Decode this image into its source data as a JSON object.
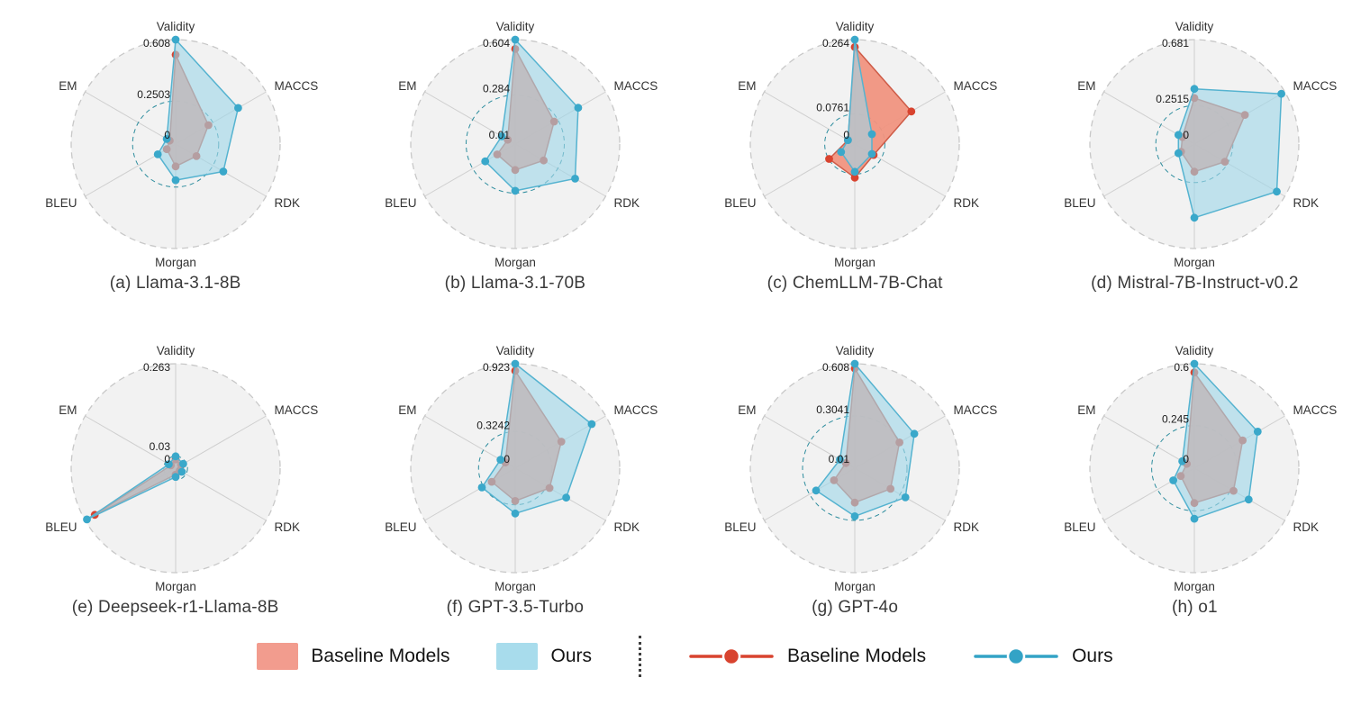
{
  "colors": {
    "baseline_fill": "#F0937F",
    "baseline_stroke": "#CE5B47",
    "baseline_dot": "#D8432F",
    "ours_fill": "#9FD7E8",
    "ours_stroke": "#55B3D0",
    "ours_dot": "#3AA8CA",
    "grid_fill": "#F2F2F2",
    "grid_stroke": "#C8C8C8",
    "spoke": "#CFCFCF",
    "mid_circle": "#2E8D9E",
    "axis_label": "#333333",
    "tick_label": "#1A1A1A",
    "caption": "#3A3A3A"
  },
  "chart_data": [
    {
      "type": "radar",
      "title": "(a) Llama-3.1-8B",
      "axes": [
        "Validity",
        "MACCS",
        "RDK",
        "Morgan",
        "BLEU",
        "EM"
      ],
      "ticks": [
        {
          "label": "0.608",
          "value": 0.608
        },
        {
          "label": "0.2503",
          "value": 0.2503
        },
        {
          "label": "0",
          "value": 0
        }
      ],
      "series": [
        {
          "name": "Baseline Models",
          "values": [
            0.52,
            0.22,
            0.14,
            0.13,
            0.06,
            0.04
          ]
        },
        {
          "name": "Ours",
          "values": [
            0.608,
            0.42,
            0.32,
            0.21,
            0.12,
            0.06
          ]
        }
      ]
    },
    {
      "type": "radar",
      "title": "(b) Llama-3.1-70B",
      "axes": [
        "Validity",
        "MACCS",
        "RDK",
        "Morgan",
        "BLEU",
        "EM"
      ],
      "ticks": [
        {
          "label": "0.604",
          "value": 0.604
        },
        {
          "label": "0.284",
          "value": 0.284
        },
        {
          "label": "0.01",
          "value": 0.01
        }
      ],
      "series": [
        {
          "name": "Baseline Models",
          "values": [
            0.55,
            0.26,
            0.19,
            0.15,
            0.12,
            0.05
          ]
        },
        {
          "name": "Ours",
          "values": [
            0.604,
            0.42,
            0.4,
            0.27,
            0.2,
            0.09
          ]
        }
      ]
    },
    {
      "type": "radar",
      "title": "(c) ChemLLM-7B-Chat",
      "axes": [
        "Validity",
        "MACCS",
        "RDK",
        "Morgan",
        "BLEU",
        "EM"
      ],
      "ticks": [
        {
          "label": "0.264",
          "value": 0.264
        },
        {
          "label": "0.0761",
          "value": 0.0761
        },
        {
          "label": "0",
          "value": 0
        }
      ],
      "series": [
        {
          "name": "Baseline Models",
          "values": [
            0.245,
            0.165,
            0.055,
            0.085,
            0.075,
            0.02
          ]
        },
        {
          "name": "Ours",
          "values": [
            0.264,
            0.05,
            0.05,
            0.07,
            0.04,
            0.02
          ]
        }
      ]
    },
    {
      "type": "radar",
      "title": "(d) Mistral-7B-Instruct-v0.2",
      "axes": [
        "Validity",
        "MACCS",
        "RDK",
        "Morgan",
        "BLEU",
        "EM"
      ],
      "ticks": [
        {
          "label": "0.681",
          "value": 0.681
        },
        {
          "label": "0.2515",
          "value": 0.2515
        },
        {
          "label": "0",
          "value": 0
        }
      ],
      "series": [
        {
          "name": "Baseline Models",
          "values": [
            0.3,
            0.38,
            0.23,
            0.18,
            0.1,
            0.09
          ]
        },
        {
          "name": "Ours",
          "values": [
            0.36,
            0.655,
            0.62,
            0.48,
            0.12,
            0.12
          ]
        }
      ]
    },
    {
      "type": "radar",
      "title": "(e) Deepseek-r1-Llama-8B",
      "axes": [
        "Validity",
        "MACCS",
        "RDK",
        "Morgan",
        "BLEU",
        "EM"
      ],
      "ticks": [
        {
          "label": "0.263",
          "value": 0.263
        },
        {
          "label": "0.03",
          "value": 0.03
        },
        {
          "label": "0",
          "value": 0
        }
      ],
      "series": [
        {
          "name": "Baseline Models",
          "values": [
            0.022,
            0.016,
            0.012,
            0.016,
            0.235,
            0.014
          ]
        },
        {
          "name": "Ours",
          "values": [
            0.03,
            0.022,
            0.018,
            0.022,
            0.258,
            0.02
          ]
        }
      ]
    },
    {
      "type": "radar",
      "title": "(f) GPT-3.5-Turbo",
      "axes": [
        "Validity",
        "MACCS",
        "RDK",
        "Morgan",
        "BLEU",
        "EM"
      ],
      "ticks": [
        {
          "label": "0.923",
          "value": 0.923
        },
        {
          "label": "0.3242",
          "value": 0.3242
        },
        {
          "label": "0",
          "value": 0
        }
      ],
      "series": [
        {
          "name": "Baseline Models",
          "values": [
            0.86,
            0.47,
            0.35,
            0.29,
            0.24,
            0.1
          ]
        },
        {
          "name": "Ours",
          "values": [
            0.923,
            0.78,
            0.52,
            0.4,
            0.34,
            0.15
          ]
        }
      ]
    },
    {
      "type": "radar",
      "title": "(g) GPT-4o",
      "axes": [
        "Validity",
        "MACCS",
        "RDK",
        "Morgan",
        "BLEU",
        "EM"
      ],
      "ticks": [
        {
          "label": "0.608",
          "value": 0.608
        },
        {
          "label": "0.3041",
          "value": 0.3041
        },
        {
          "label": "0.01",
          "value": 0.01
        }
      ],
      "series": [
        {
          "name": "Baseline Models",
          "values": [
            0.58,
            0.3,
            0.24,
            0.2,
            0.14,
            0.06
          ]
        },
        {
          "name": "Ours",
          "values": [
            0.608,
            0.4,
            0.34,
            0.28,
            0.26,
            0.1
          ]
        }
      ]
    },
    {
      "type": "radar",
      "title": "(h) o1",
      "axes": [
        "Validity",
        "MACCS",
        "RDK",
        "Morgan",
        "BLEU",
        "EM"
      ],
      "ticks": [
        {
          "label": "0.6",
          "value": 0.6
        },
        {
          "label": "0.245",
          "value": 0.245
        },
        {
          "label": "0",
          "value": 0
        }
      ],
      "series": [
        {
          "name": "Baseline Models",
          "values": [
            0.55,
            0.32,
            0.26,
            0.2,
            0.09,
            0.05
          ]
        },
        {
          "name": "Ours",
          "values": [
            0.6,
            0.42,
            0.36,
            0.29,
            0.14,
            0.08
          ]
        }
      ]
    }
  ],
  "legend": {
    "area_items": [
      {
        "label": "Baseline Models",
        "color": "#F29C8E"
      },
      {
        "label": "Ours",
        "color": "#A8DCEC"
      }
    ],
    "line_items": [
      {
        "label": "Baseline Models",
        "color": "#D8432F"
      },
      {
        "label": "Ours",
        "color": "#33A3C6"
      }
    ]
  }
}
